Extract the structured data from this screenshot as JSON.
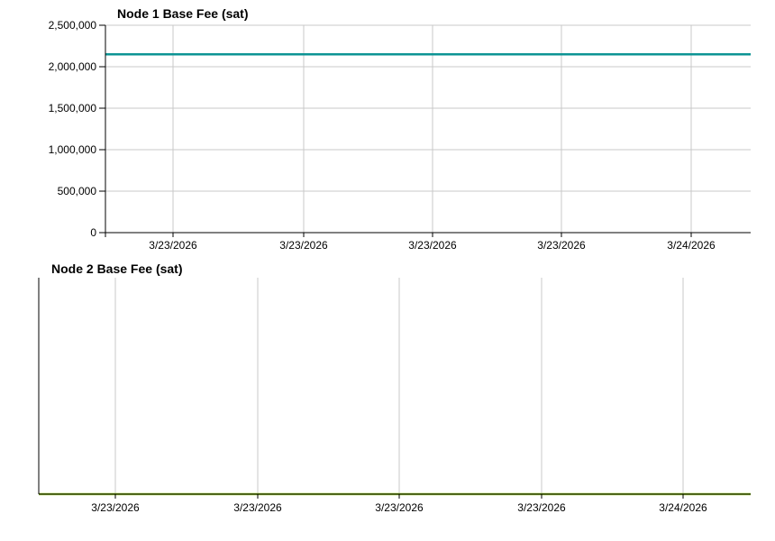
{
  "page": {
    "background_color": "#ffffff",
    "text_color": "#000000"
  },
  "chart_data": [
    {
      "type": "line",
      "title": "Node 1 Base Fee (sat)",
      "categories": [
        "3/23/2026",
        "3/23/2026",
        "3/23/2026",
        "3/23/2026",
        "3/24/2026"
      ],
      "x_tick_labels": [
        "3/23/2026",
        "3/23/2026",
        "3/23/2026",
        "3/23/2026",
        "3/24/2026"
      ],
      "y_tick_labels": [
        "2,500,000",
        "2,000,000",
        "1,500,000",
        "1,000,000",
        "500,000",
        "0"
      ],
      "y_ticks": [
        2500000,
        2000000,
        1500000,
        1000000,
        500000,
        0
      ],
      "ylim": [
        0,
        2500000
      ],
      "grid": "horizontal and vertical gridlines",
      "legend_position": "none",
      "xlabel": "",
      "ylabel": "",
      "series": [
        {
          "name": "Node 1 Base Fee",
          "color": "#0d9494",
          "constant_value": 2150000,
          "values": [
            2150000,
            2150000,
            2150000,
            2150000,
            2150000
          ]
        }
      ],
      "axis_color": "#000000",
      "grid_color": "#c9c9c9"
    },
    {
      "type": "line",
      "title": "Node 2 Base Fee (sat)",
      "categories": [
        "3/23/2026",
        "3/23/2026",
        "3/23/2026",
        "3/23/2026",
        "3/24/2026"
      ],
      "x_tick_labels": [
        "3/23/2026",
        "3/23/2026",
        "3/23/2026",
        "3/23/2026",
        "3/24/2026"
      ],
      "y_tick_labels": [],
      "y_ticks": [],
      "ylim": null,
      "grid": "vertical gridlines only",
      "legend_position": "none",
      "xlabel": "",
      "ylabel": "",
      "series": [
        {
          "name": "Node 2 Base Fee",
          "color": "#9acd32",
          "constant_value": 0,
          "values": [
            0,
            0,
            0,
            0,
            0
          ]
        }
      ],
      "axis_color": "#000000",
      "grid_color": "#c9c9c9"
    }
  ]
}
